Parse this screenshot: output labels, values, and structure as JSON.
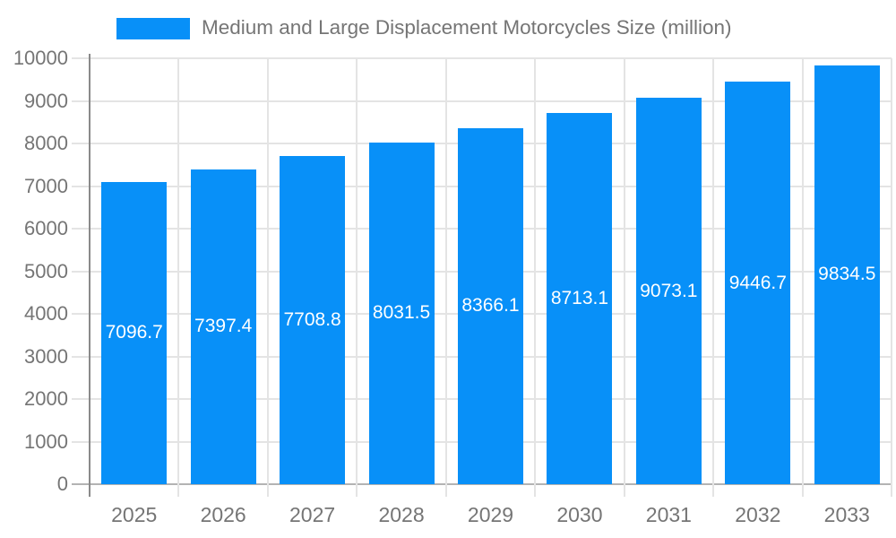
{
  "legend": {
    "label": "Medium and Large Displacement Motorcycles Size (million)"
  },
  "chart_data": {
    "type": "bar",
    "title": "Medium and Large Displacement Motorcycles Size (million)",
    "series_name": "Medium and Large Displacement Motorcycles Size (million)",
    "categories": [
      "2025",
      "2026",
      "2027",
      "2028",
      "2029",
      "2030",
      "2031",
      "2032",
      "2033"
    ],
    "values": [
      7096.7,
      7397.4,
      7708.8,
      8031.5,
      8366.1,
      8713.1,
      9073.1,
      9446.7,
      9834.5
    ],
    "value_labels": [
      "7096.7",
      "7397.4",
      "7708.8",
      "8031.5",
      "8366.1",
      "8713.1",
      "9073.1",
      "9446.7",
      "9834.5"
    ],
    "xlabel": "",
    "ylabel": "",
    "ylim": [
      0,
      10000
    ],
    "ytick_step": 1000,
    "ytick_labels": [
      "0",
      "1000",
      "2000",
      "3000",
      "4000",
      "5000",
      "6000",
      "7000",
      "8000",
      "9000",
      "10000"
    ],
    "grid": true,
    "legend_position": "top",
    "bar_color": "#0890f8",
    "value_label_color": "#ffffff",
    "axis_text_color": "#757575",
    "gridline_color": "#e4e4e4",
    "axis_line_color": "#8a8a8a"
  }
}
